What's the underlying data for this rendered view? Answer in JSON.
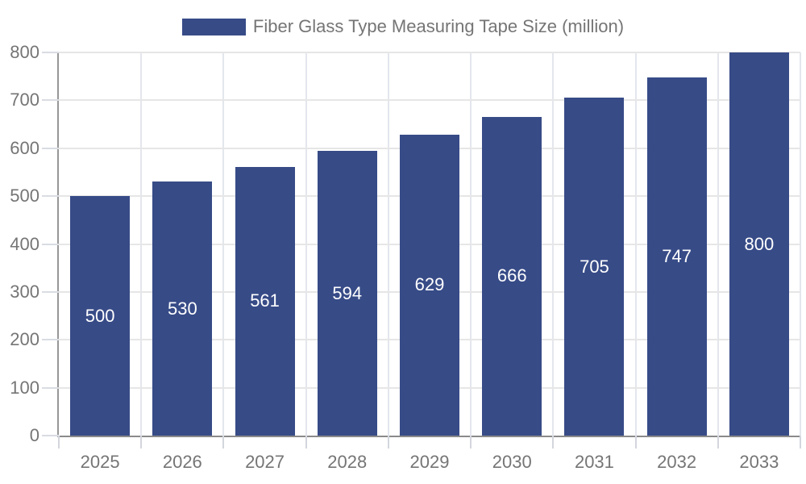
{
  "colors": {
    "bar": "#374b87",
    "axis_text": "#757575",
    "bar_label": "#ffffff",
    "h_grid": "#e6e6e6",
    "v_grid": "#e3e6ed",
    "axis_line": "#8a8a8a"
  },
  "legend": {
    "swatch_icon": "legend-color-swatch",
    "label": "Fiber Glass Type Measuring Tape Size (million)"
  },
  "chart_data": {
    "type": "bar",
    "title": "Fiber Glass Type Measuring Tape Size (million)",
    "categories": [
      "2025",
      "2026",
      "2027",
      "2028",
      "2029",
      "2030",
      "2031",
      "2032",
      "2033"
    ],
    "series": [
      {
        "name": "Fiber Glass Type Measuring Tape Size (million)",
        "values": [
          500,
          530,
          561,
          594,
          629,
          666,
          705,
          747,
          800
        ]
      }
    ],
    "xlabel": "",
    "ylabel": "",
    "ylim": [
      0,
      800
    ],
    "ytick_step": 100,
    "ytick_labels": [
      "0",
      "100",
      "200",
      "300",
      "400",
      "500",
      "600",
      "700",
      "800"
    ],
    "grid": true,
    "legend_position": "top-center",
    "bar_value_labels_visible": true,
    "bar_value_label_position": "center-of-bar"
  }
}
